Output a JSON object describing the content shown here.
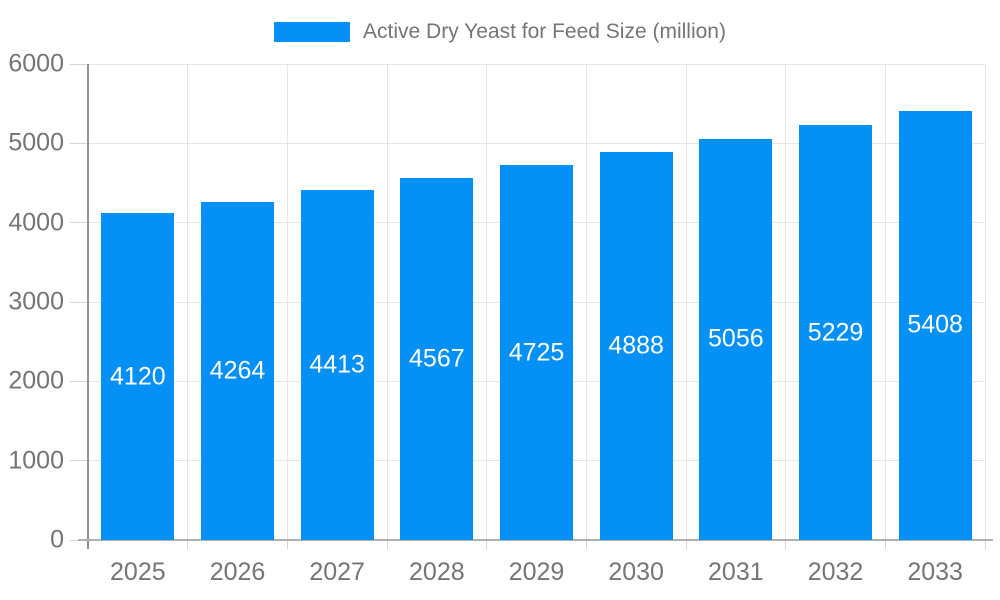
{
  "chart_data": {
    "type": "bar",
    "title": "Active Dry Yeast for Feed Size (million)",
    "legend_position": "top",
    "legend_entries": [
      "Active Dry Yeast for Feed Size (million)"
    ],
    "categories": [
      "2025",
      "2026",
      "2027",
      "2028",
      "2029",
      "2030",
      "2031",
      "2032",
      "2033"
    ],
    "series": [
      {
        "name": "Active Dry Yeast for Feed Size (million)",
        "values": [
          4120,
          4264,
          4413,
          4567,
          4725,
          4888,
          5056,
          5229,
          5408
        ]
      }
    ],
    "xlabel": "",
    "ylabel": "",
    "ylim": [
      0,
      6000
    ],
    "yticks": [
      0,
      1000,
      2000,
      3000,
      4000,
      5000,
      6000
    ],
    "grid": true,
    "value_labels_position": "inside-center"
  },
  "colors": {
    "bar": "#0590F5",
    "background": "#ffffff",
    "grid_line": "#e6e6e6",
    "tick_line": "#d4d4d4",
    "axis_line": "#b0b0b0",
    "y_axis_line": "#919191",
    "axis_label": "#757575",
    "legend_text": "#757575",
    "value_label": "#ffffff"
  }
}
